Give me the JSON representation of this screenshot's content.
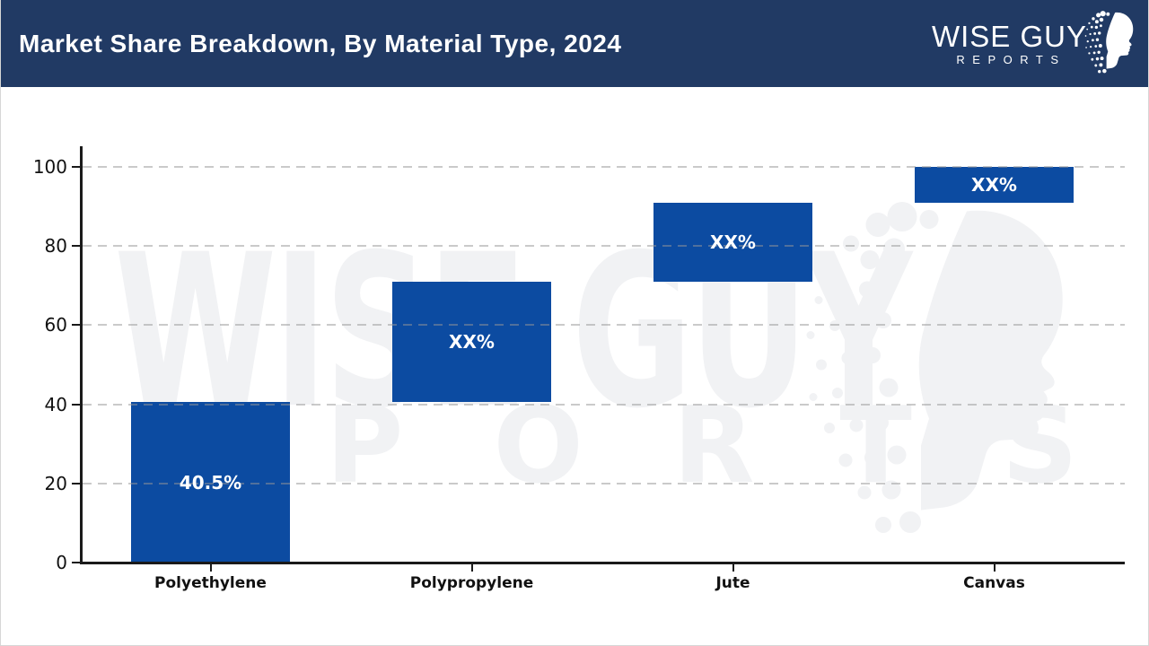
{
  "header": {
    "title": "Market Share Breakdown, By Material Type, 2024",
    "background": "#213a64",
    "logo": {
      "line1": "WISE GUY",
      "line2": "REPORTS"
    }
  },
  "watermark": {
    "line1": "WISE GUY",
    "line2": "PORTS"
  },
  "chart_data": {
    "type": "bar",
    "subtype": "waterfall",
    "title": "Market Share Breakdown, By Material Type, 2024",
    "categories": [
      "Polyethylene",
      "Polypropylene",
      "Jute",
      "Canvas"
    ],
    "segments": [
      {
        "label": "Polyethylene",
        "start": 0,
        "end": 40.5,
        "value_label": "40.5%"
      },
      {
        "label": "Polypropylene",
        "start": 40.5,
        "end": 71,
        "value_label": "XX%"
      },
      {
        "label": "Jute",
        "start": 71,
        "end": 91,
        "value_label": "XX%"
      },
      {
        "label": "Canvas",
        "start": 91,
        "end": 100,
        "value_label": "XX%"
      }
    ],
    "estimated_increments": [
      40.5,
      30.5,
      20,
      9
    ],
    "yticks": [
      0,
      20,
      40,
      60,
      80,
      100
    ],
    "ylim": [
      0,
      104
    ],
    "xlabel": "",
    "ylabel": "",
    "legend": "none",
    "grid": "dashed-horizontal-over-bars",
    "bar_color": "#0c4ba1",
    "bar_label_color": "#ffffff",
    "axis_color": "#1a1a1a",
    "grid_color": "#c9c9c9",
    "watermark_color": "#f1f2f4"
  }
}
